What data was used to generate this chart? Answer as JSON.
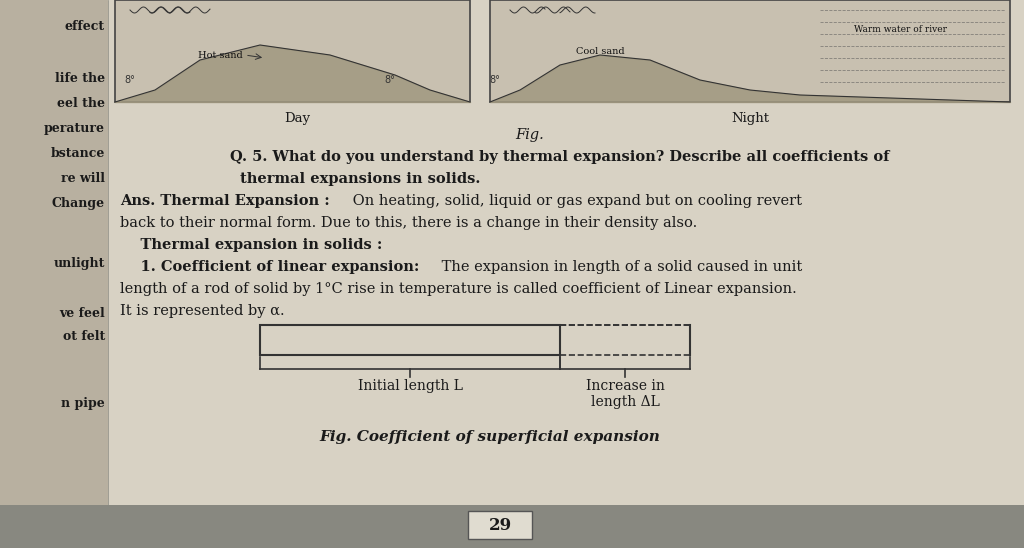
{
  "bg_color": "#c0b8a8",
  "page_bg": "#d8d2c4",
  "left_bg": "#b8b0a0",
  "title_fig": "Fig.",
  "q_line1": "Q. 5. What do you understand by thermal expansion? Describe all coefficients of",
  "q_line2": "thermal expansions in solids.",
  "ans_label": "Ans. Thermal Expansion :",
  "ans_text1": " On heating, solid, liquid or gas expand but on cooling revert",
  "ans_text2": "back to their normal form. Due to this, there is a change in their density also.",
  "thermal_bold": "    Thermal expansion in solids :",
  "coeff_bold": "    1. Coefficient of linear expansion:",
  "coeff_text1": " The expansion in length of a solid caused in unit",
  "coeff_text2": "length of a rod of solid by 1°C rise in temperature is called coefficient of Linear expansion.",
  "coeff_text3": "It is represented by α.",
  "fig_caption": "Fig. Coefficient of superficial expansion",
  "page_number": "29",
  "left_words": [
    "effect",
    "life the",
    "eel the",
    "perature",
    "bstance",
    "re will",
    "Change",
    "unlight",
    "ve feel",
    "ot felt",
    "n pipe"
  ],
  "left_y": [
    8,
    60,
    85,
    110,
    135,
    160,
    185,
    245,
    295,
    318,
    385
  ],
  "day_label": "Day",
  "night_label": "Night",
  "initial_length_label": "Initial length L",
  "increase_label": "Increase in\nlength ΔL",
  "bottom_bar_color": "#888880",
  "text_color": "#1a1a1a",
  "box_color": "#d8d2c4",
  "box_edge": "#444444"
}
